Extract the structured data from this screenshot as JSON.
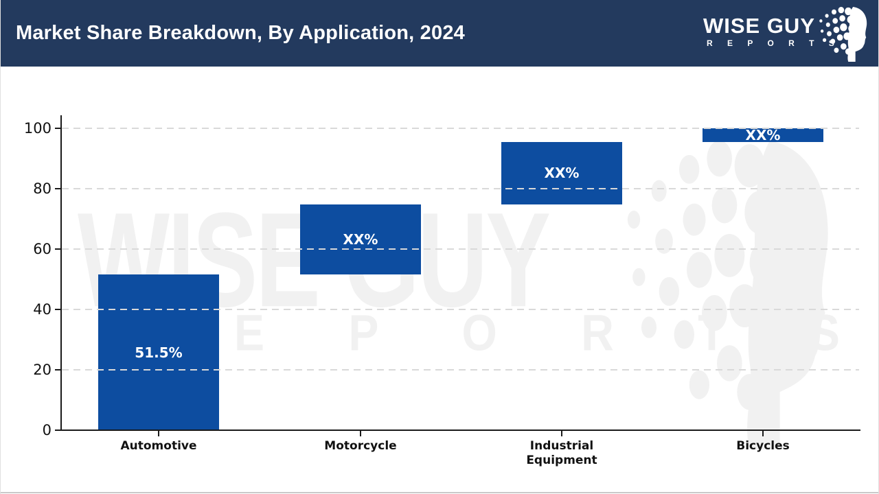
{
  "header": {
    "title": "Market Share Breakdown, By Application, 2024",
    "bg_color": "#233a5e",
    "brand": {
      "name_top": "WISE GUY",
      "name_bottom": "R E P O R T S"
    }
  },
  "watermark": {
    "line1": "WISE GUY",
    "line2": "R E P O R T S"
  },
  "chart_data": {
    "type": "bar",
    "subtype": "waterfall (stacked percentage breakdown)",
    "title": "Market Share Breakdown, By Application, 2024",
    "categories": [
      "Automotive",
      "Motorcycle",
      "Industrial Equipment",
      "Bicycles"
    ],
    "segments": [
      {
        "category": "Automotive",
        "start": 0,
        "end": 51.5,
        "label": "51.5%"
      },
      {
        "category": "Motorcycle",
        "start": 51.5,
        "end": 74.8,
        "label": "XX%"
      },
      {
        "category": "Industrial Equipment",
        "start": 74.8,
        "end": 95.5,
        "label": "XX%"
      },
      {
        "category": "Bicycles",
        "start": 95.5,
        "end": 100,
        "label": "XX%"
      }
    ],
    "xlabel": "",
    "ylabel": "",
    "ylim": [
      0,
      100
    ],
    "yticks": [
      0,
      20,
      40,
      60,
      80,
      100
    ],
    "bar_color": "#0d4da0",
    "bar_label_color": "#ffffff",
    "grid": {
      "horizontal": true,
      "style": "dashed",
      "color": "#d9d9d9",
      "drawn_over_bars": true
    },
    "legend": "none"
  }
}
